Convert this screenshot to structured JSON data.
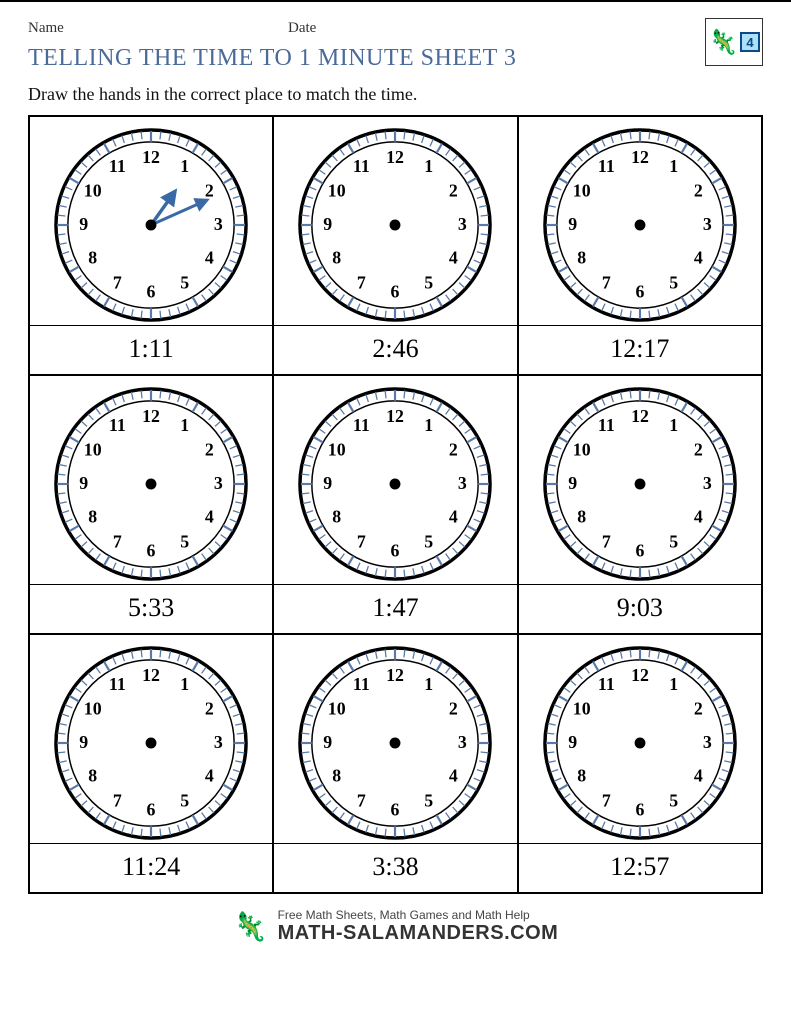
{
  "header": {
    "name_label": "Name",
    "date_label": "Date",
    "grade_number": "4"
  },
  "title": "TELLING THE TIME TO 1 MINUTE SHEET 3",
  "instructions": "Draw the hands in the correct place to match the time.",
  "clock": {
    "numbers": [
      "12",
      "1",
      "2",
      "3",
      "4",
      "5",
      "6",
      "7",
      "8",
      "9",
      "10",
      "11"
    ],
    "outer_stroke": "#000000",
    "tick_color": "#5a7aaa",
    "hand_color": "#3a6aa5",
    "center_color": "#000000",
    "num_radius": 68,
    "outer_radius": 96,
    "inner_ring_radius": 84,
    "tick_outer": 95,
    "tick_inner_minor": 87,
    "tick_inner_major": 84
  },
  "cells": [
    {
      "time": "1:11",
      "hands": {
        "hour": 1,
        "minute": 11
      }
    },
    {
      "time": "2:46",
      "hands": null
    },
    {
      "time": "12:17",
      "hands": null
    },
    {
      "time": "5:33",
      "hands": null
    },
    {
      "time": "1:47",
      "hands": null
    },
    {
      "time": "9:03",
      "hands": null
    },
    {
      "time": "11:24",
      "hands": null
    },
    {
      "time": "3:38",
      "hands": null
    },
    {
      "time": "12:57",
      "hands": null
    }
  ],
  "footer": {
    "line1": "Free Math Sheets, Math Games and Math Help",
    "line2": "MATH-SALAMANDERS.COM"
  }
}
